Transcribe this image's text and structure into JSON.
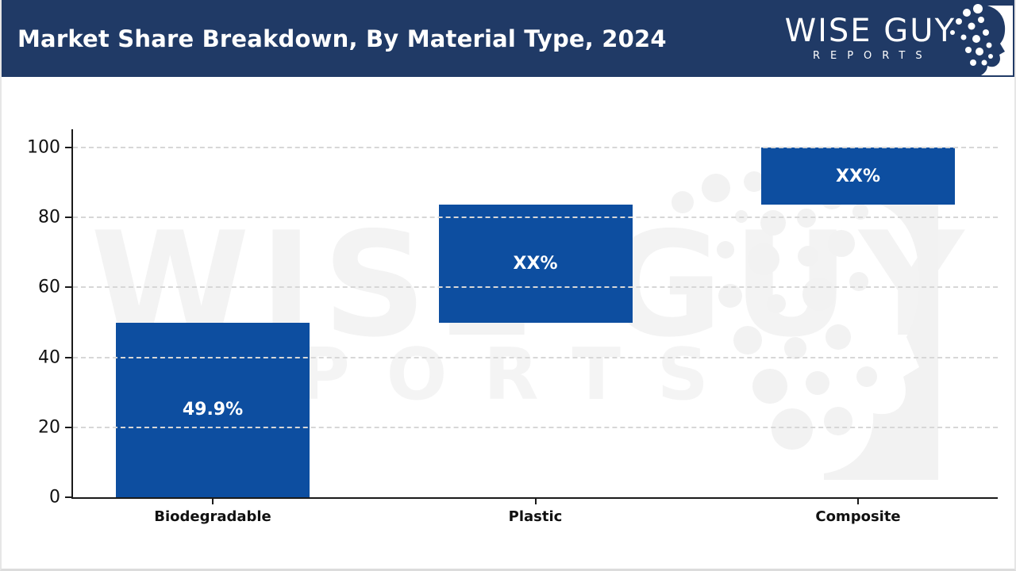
{
  "header": {
    "title": "Market Share Breakdown, By Material Type, 2024",
    "logo": {
      "line1": "WISE GUY",
      "line2": "REPORTS"
    }
  },
  "watermark": {
    "line1": "WISE GUY",
    "line2": "REPORTS"
  },
  "chart_data": {
    "type": "bar",
    "subtype": "waterfall",
    "title": "Market Share Breakdown, By Material Type, 2024",
    "categories": [
      "Biodegradable",
      "Plastic",
      "Composite"
    ],
    "segments": [
      {
        "category": "Biodegradable",
        "start": 0,
        "end": 49.9,
        "label": "49.9%"
      },
      {
        "category": "Plastic",
        "start": 49.9,
        "end": 83.6,
        "label": "XX%"
      },
      {
        "category": "Composite",
        "start": 83.6,
        "end": 100,
        "label": "XX%"
      }
    ],
    "xlabel": "",
    "ylabel": "",
    "ylim": [
      0,
      100
    ],
    "yticks": [
      0,
      20,
      40,
      60,
      80,
      100
    ],
    "grid": "dashed-horizontal",
    "legend": "none",
    "bar_color": "#0d4ea0",
    "bar_label_color": "#ffffff",
    "grid_color": "#d7d7d7",
    "axis_color": "#1a1a1a"
  },
  "colors": {
    "header_bg": "#203a66",
    "watermark": "#f3f3f3"
  }
}
